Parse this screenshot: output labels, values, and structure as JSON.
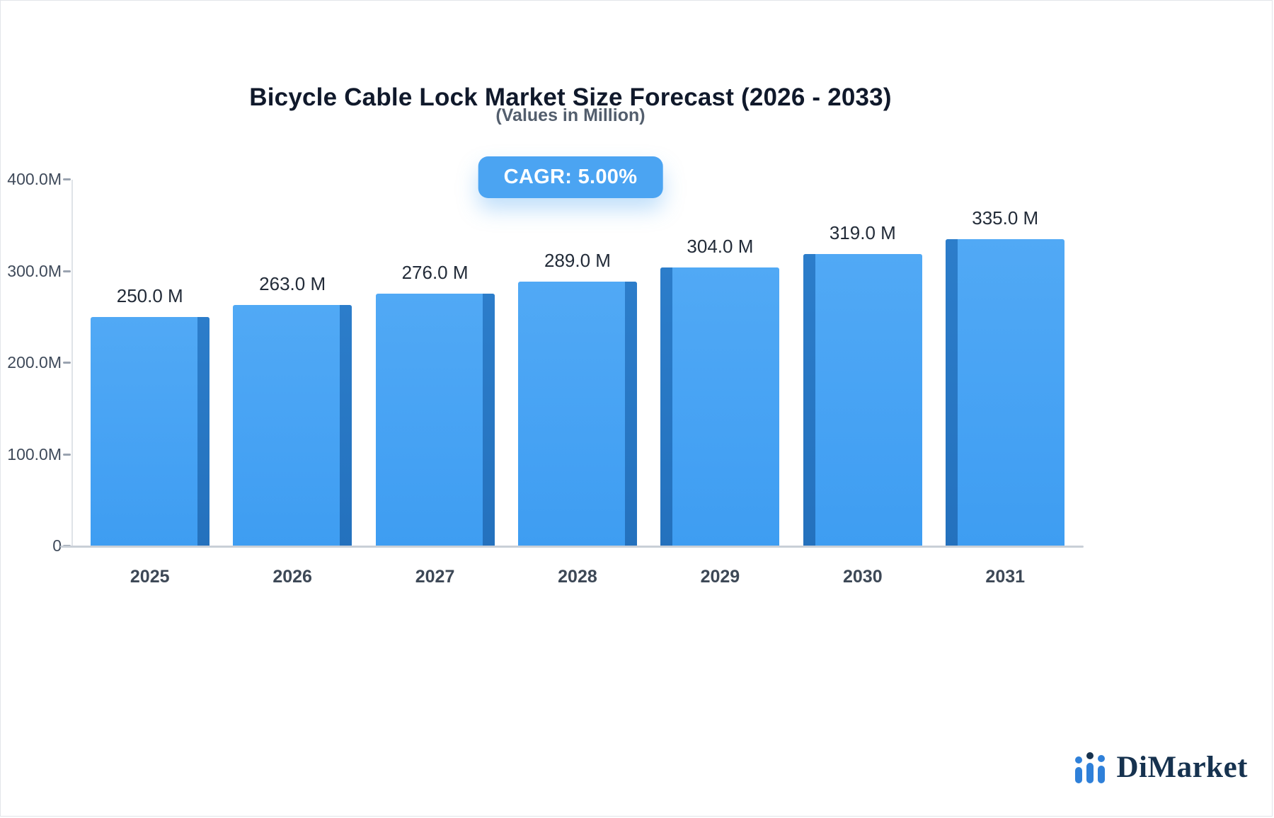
{
  "title": "Bicycle Cable Lock Market Size Forecast (2026 - 2033)",
  "subtitle": "(Values in Million)",
  "badge": {
    "label": "CAGR: 5.00%",
    "bg_color": "#4BA4F2"
  },
  "logo": {
    "text": "DiMarket",
    "icon": "bar-chart-icon",
    "accent_color": "#2F80D9"
  },
  "chart_data": {
    "type": "bar",
    "title": "Bicycle Cable Lock Market Size Forecast (2026 - 2033)",
    "subtitle": "(Values in Million)",
    "xlabel": "",
    "ylabel": "",
    "categories": [
      "2025",
      "2026",
      "2027",
      "2028",
      "2029",
      "2030",
      "2031"
    ],
    "values": [
      250,
      263,
      276,
      289,
      304,
      319,
      335
    ],
    "value_labels": [
      "250.0 M",
      "263.0 M",
      "276.0 M",
      "289.0 M",
      "304.0 M",
      "319.0 M",
      "335.0 M"
    ],
    "y_ticks": [
      "400.0M",
      "300.0M",
      "200.0M",
      "100.0M",
      "0"
    ],
    "ylim": [
      0,
      400
    ],
    "grid": false,
    "legend": false,
    "bar_color": "#3E9DF2",
    "bar_side_color": "#2471BD",
    "flip_side_from_index": 4
  }
}
